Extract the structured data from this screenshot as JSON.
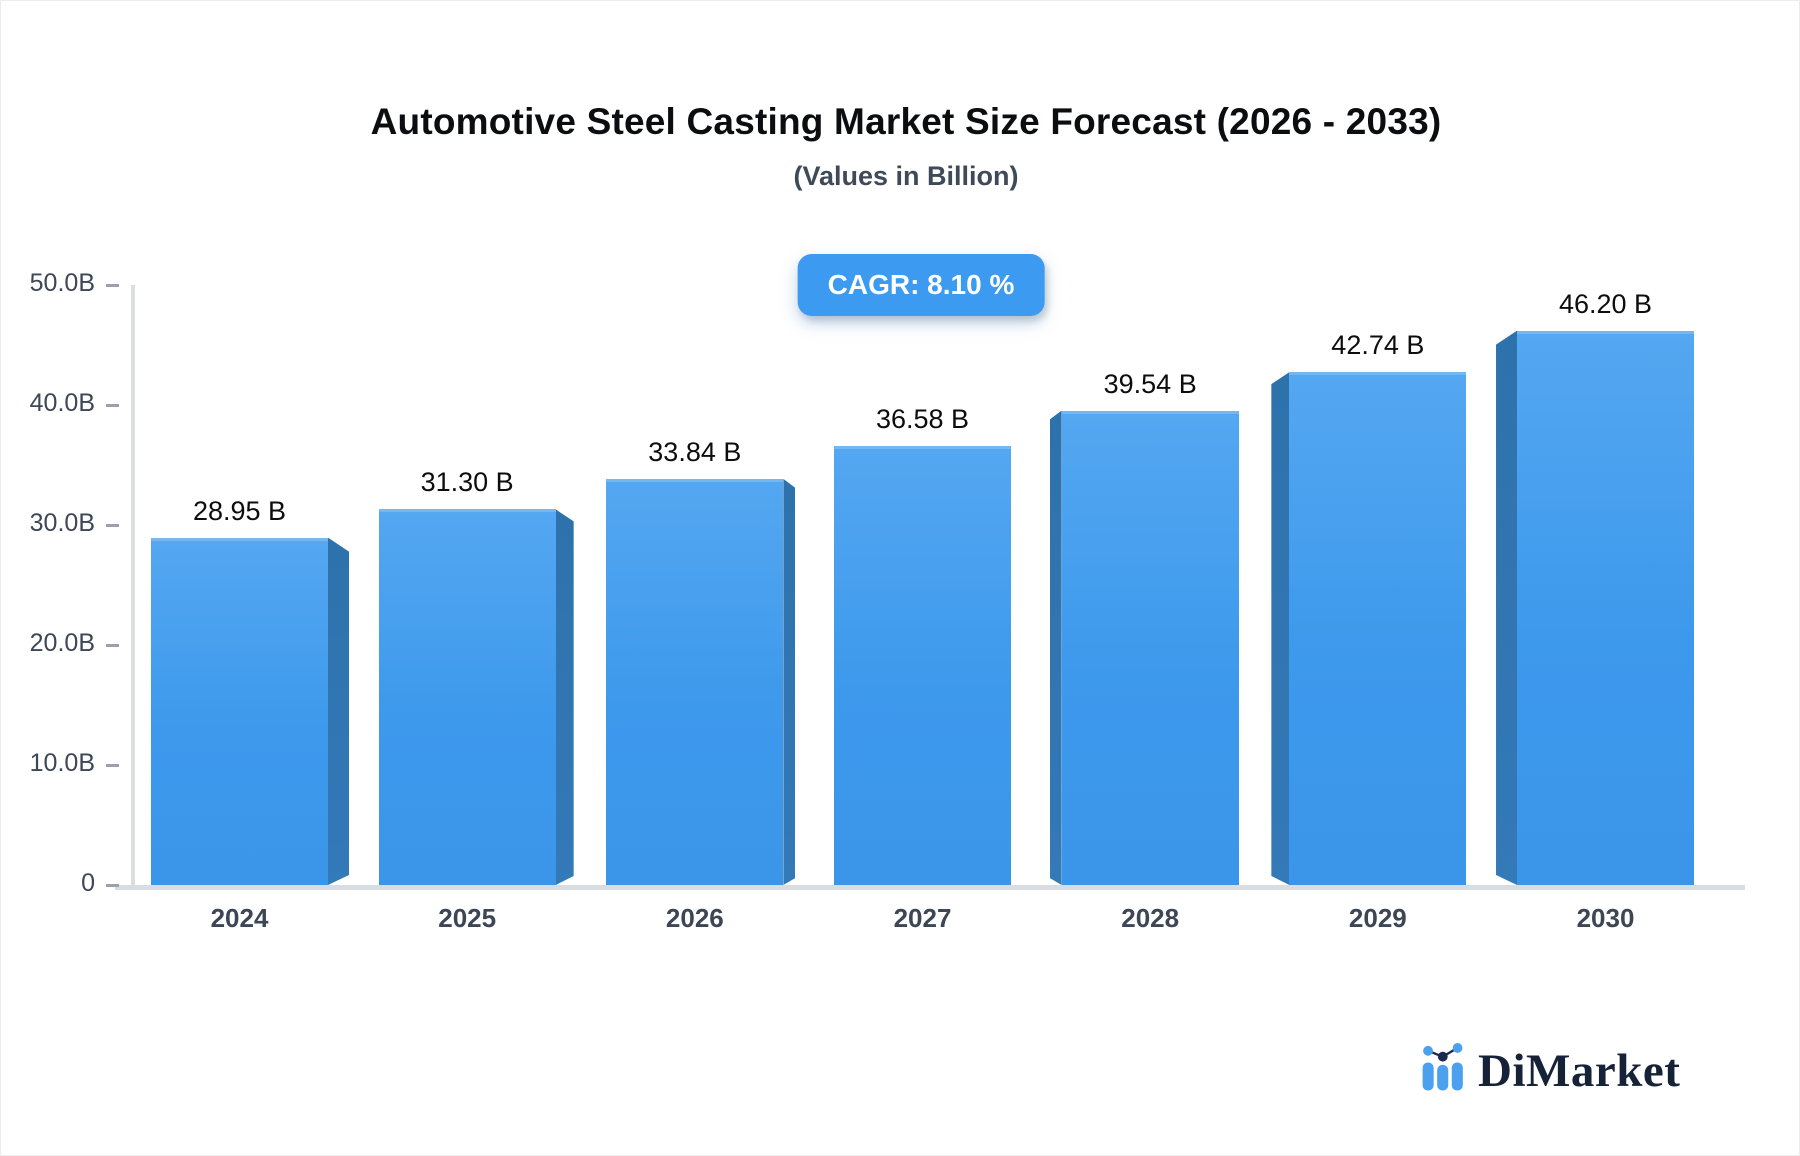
{
  "header": {
    "title": "Automotive Steel Casting Market Size Forecast (2026 - 2033)",
    "subtitle": "(Values in Billion)",
    "cagr_badge": "CAGR: 8.10 %"
  },
  "chart_data": {
    "type": "bar",
    "title": "Automotive Steel Casting Market Size Forecast (2026 - 2033)",
    "subtitle": "(Values in Billion)",
    "cagr_label": "CAGR: 8.10 %",
    "categories": [
      "2024",
      "2025",
      "2026",
      "2027",
      "2028",
      "2029",
      "2030"
    ],
    "values": [
      28.95,
      31.3,
      33.84,
      36.58,
      39.54,
      42.74,
      46.2
    ],
    "value_labels": [
      "28.95 B",
      "31.30 B",
      "33.84 B",
      "36.58 B",
      "39.54 B",
      "42.74 B",
      "46.20 B"
    ],
    "unit": "Billion",
    "xlabel": "",
    "ylabel": "",
    "ylim": [
      0,
      50
    ],
    "yticks": [
      {
        "value": 0,
        "label": "0"
      },
      {
        "value": 10,
        "label": "10.0B"
      },
      {
        "value": 20,
        "label": "20.0B"
      },
      {
        "value": 30,
        "label": "30.0B"
      },
      {
        "value": 40,
        "label": "40.0B"
      },
      {
        "value": 50,
        "label": "50.0B"
      }
    ],
    "grid": false,
    "legend": "none",
    "bar_face_color": "#3F9BEE",
    "bar_side_color": "#2F76B4",
    "style": "pseudo-3d bars, side shading faces away from center bar"
  },
  "footer": {
    "brand": "DiMarket",
    "brand_color": "#152238",
    "brand_icon_color": "#4BA1EE"
  }
}
